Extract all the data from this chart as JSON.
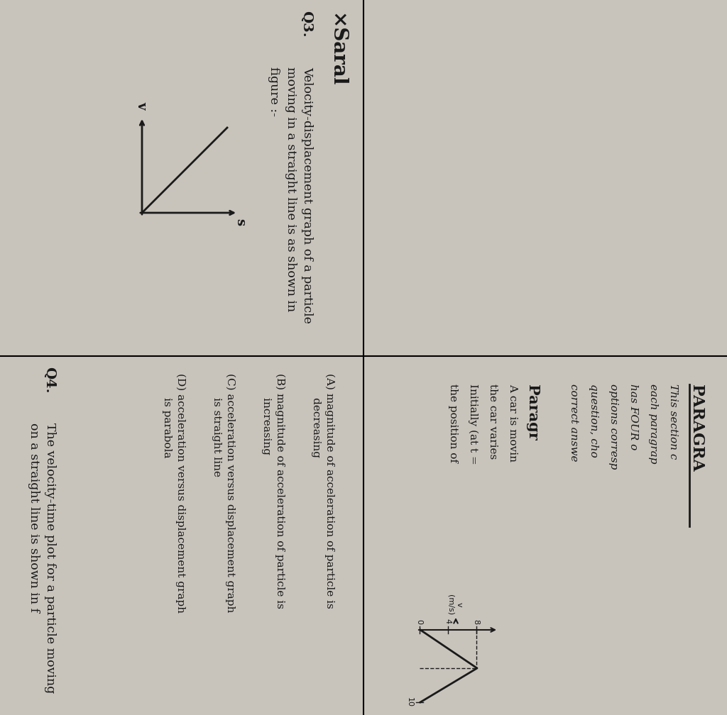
{
  "background_color": "#c8c4bc",
  "text_color": "#1a1a1a",
  "font_size_main": 12,
  "font_size_small": 10.5,
  "font_size_logo": 18,
  "font_size_q": 13,
  "font_size_tiny": 8.5,
  "saral_logo": "×Saral",
  "q3_label": "Q3.",
  "q3_question": "Velocity-displacement graph of a particle\nmoving in a straight line is as shown in\nfigure :-",
  "q3_options": [
    "(A) magnitude of acceleration of particle is\n       decreasing",
    "(B) magnitude of acceleration of particle is\n       increasing",
    "(C) acceleration versus displacement graph\n       is straight line",
    "(D) acceleration versus displacement graph\n       is parabola"
  ],
  "q4_label": "Q4.",
  "q4_question": "The velocity-time plot for a particle moving\non a straight line is shown in f",
  "para_header": "PARAGRA",
  "para_lines": [
    "This section c",
    "each paragrap",
    "has FOUR o",
    "options corresp",
    "question, cho",
    "correct answe"
  ],
  "para2_header": "Paragr",
  "para2_lines": [
    "A car is movin",
    "the car varies",
    "Initially (at t =",
    "the position of"
  ],
  "small_graph_yticks": [
    0,
    4,
    8
  ],
  "small_graph_xtick": 10
}
